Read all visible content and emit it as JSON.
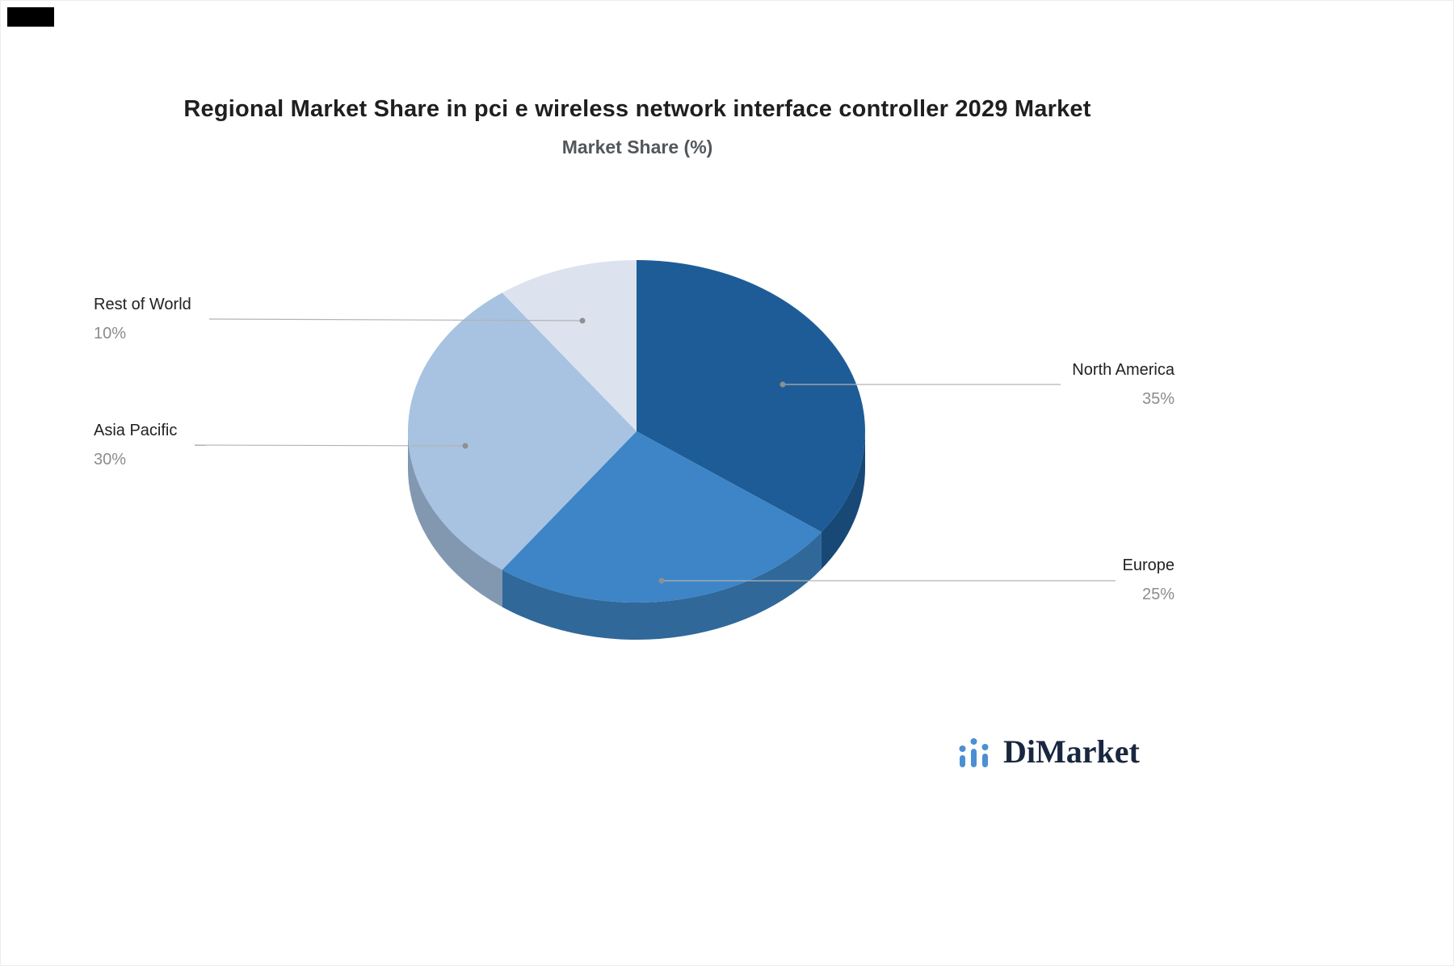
{
  "chart_data": {
    "type": "pie",
    "style": "3d-pie",
    "title": "Regional Market Share in pci e wireless network interface controller 2029 Market",
    "subtitle": "Market Share (%)",
    "unit": "%",
    "legend_position": "outside-labels-with-leader-lines",
    "slices": [
      {
        "name": "North America",
        "value": 35,
        "pct_label": "35%",
        "color": "#1E5C97"
      },
      {
        "name": "Europe",
        "value": 25,
        "pct_label": "25%",
        "color": "#3D85C6"
      },
      {
        "name": "Asia Pacific",
        "value": 30,
        "pct_label": "30%",
        "color": "#A7C3E1"
      },
      {
        "name": "Rest of World",
        "value": 10,
        "pct_label": "10%",
        "color": "#DCE3EE"
      }
    ]
  },
  "logo": {
    "text": "DiMarket"
  }
}
